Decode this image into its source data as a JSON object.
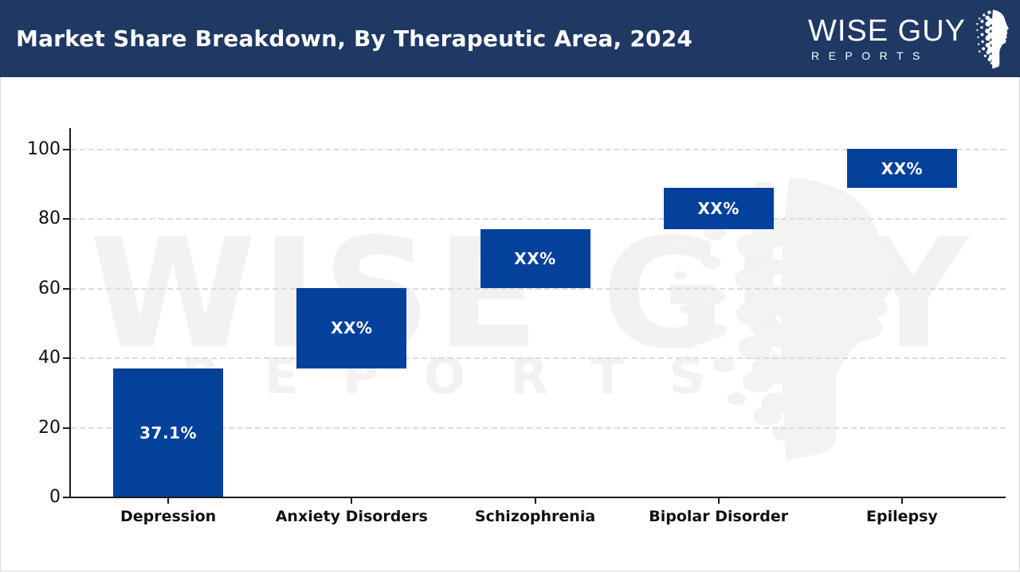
{
  "header": {
    "title": "Market Share Breakdown, By Therapeutic Area, 2024",
    "background_color": "#1F3864",
    "logo": {
      "line1": "WISE GUY",
      "line2": "REPORTS"
    }
  },
  "watermark": {
    "line1": "WISE GUY",
    "line2": "REPORTS"
  },
  "chart_data": {
    "type": "bar",
    "subtype": "waterfall",
    "title": "Market Share Breakdown, By Therapeutic Area, 2024",
    "categories": [
      "Depression",
      "Anxiety Disorders",
      "Schizophrenia",
      "Bipolar Disorder",
      "Epilepsy"
    ],
    "segments": [
      {
        "category": "Depression",
        "start": 0,
        "end": 37.1,
        "label": "37.1%"
      },
      {
        "category": "Anxiety Disorders",
        "start": 37.1,
        "end": 60.1,
        "label": "XX%"
      },
      {
        "category": "Schizophrenia",
        "start": 60.1,
        "end": 77.1,
        "label": "XX%"
      },
      {
        "category": "Bipolar Disorder",
        "start": 77.1,
        "end": 88.9,
        "label": "XX%"
      },
      {
        "category": "Epilepsy",
        "start": 88.9,
        "end": 100.1,
        "label": "XX%"
      }
    ],
    "xlabel": "",
    "ylabel": "",
    "ylim": [
      0,
      105.6
    ],
    "yticks": [
      0,
      20,
      40,
      60,
      80,
      100
    ],
    "grid": "horizontal-dashed",
    "legend": "none",
    "colors": {
      "bar": "#03419A",
      "bar_label": "#FFFFFF",
      "axis": "#1a1a1a",
      "gridline": "#DBDBDB",
      "watermark": "#F2F2F2",
      "header_bg": "#1F3864"
    }
  }
}
